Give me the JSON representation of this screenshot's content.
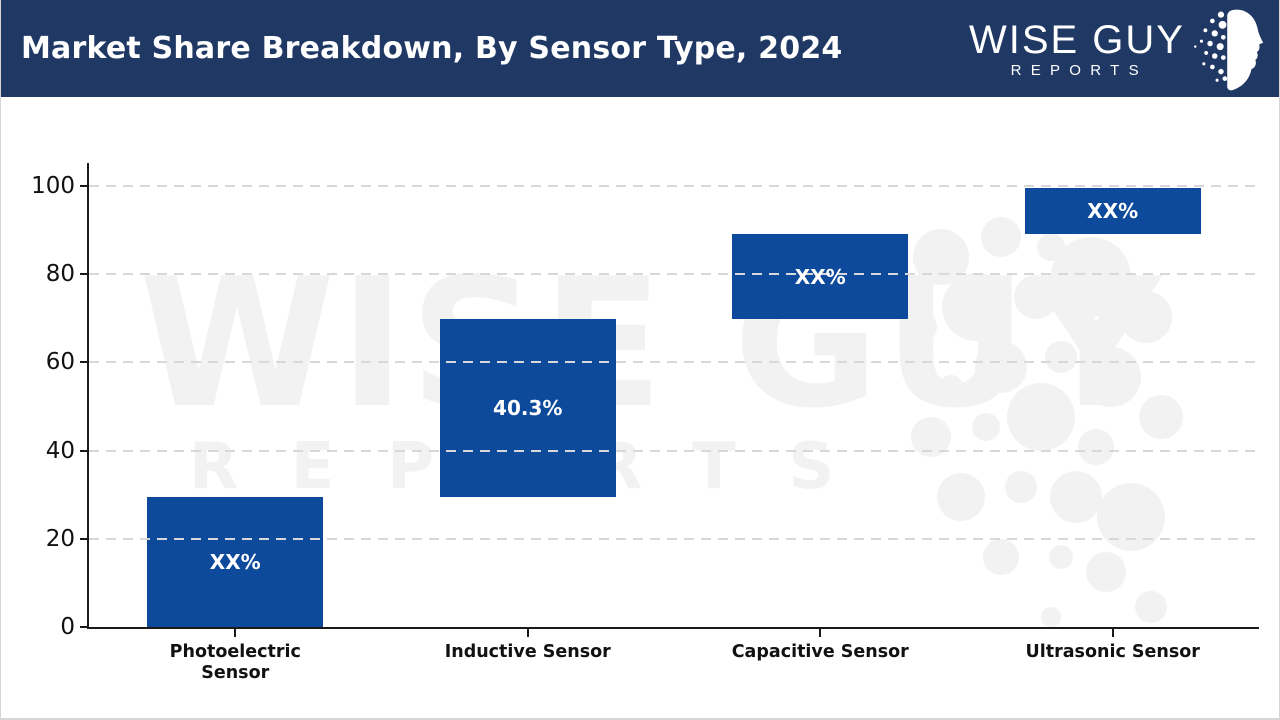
{
  "header": {
    "title": "Market Share Breakdown, By Sensor Type, 2024",
    "logo": {
      "line1": "WISE GUY",
      "line2": "REPORTS"
    }
  },
  "watermark": {
    "line1": "WISE GUY",
    "line2": "REPORTS"
  },
  "chart_data": {
    "type": "bar",
    "subtype": "floating-waterfall",
    "title": "Market Share Breakdown, By Sensor Type, 2024",
    "xlabel": "",
    "ylabel": "",
    "categories": [
      "Photoelectric Sensor",
      "Inductive Sensor",
      "Capacitive Sensor",
      "Ultrasonic Sensor"
    ],
    "x_tick_lines": [
      [
        "Photoelectric",
        "Sensor"
      ],
      [
        "Inductive Sensor"
      ],
      [
        "Capacitive Sensor"
      ],
      [
        "Ultrasonic Sensor"
      ]
    ],
    "segments": [
      {
        "category": "Photoelectric Sensor",
        "from": 0,
        "to": 29.5,
        "label": "XX%"
      },
      {
        "category": "Inductive Sensor",
        "from": 29.5,
        "to": 69.8,
        "label": "40.3%"
      },
      {
        "category": "Capacitive Sensor",
        "from": 69.8,
        "to": 89.1,
        "label": "XX%"
      },
      {
        "category": "Ultrasonic Sensor",
        "from": 89.1,
        "to": 99.6,
        "label": "XX%"
      }
    ],
    "y_ticks": [
      0,
      20,
      40,
      60,
      80,
      100
    ],
    "ylim": [
      0,
      105
    ],
    "grid": "horizontal-dashed",
    "legend": null,
    "bar_color": "#0d4a9c",
    "bar_label_color": "#ffffff",
    "grid_color": "#d8d8d8",
    "header_bg_color": "#1f3864",
    "watermark_color": "#f2f2f2"
  }
}
